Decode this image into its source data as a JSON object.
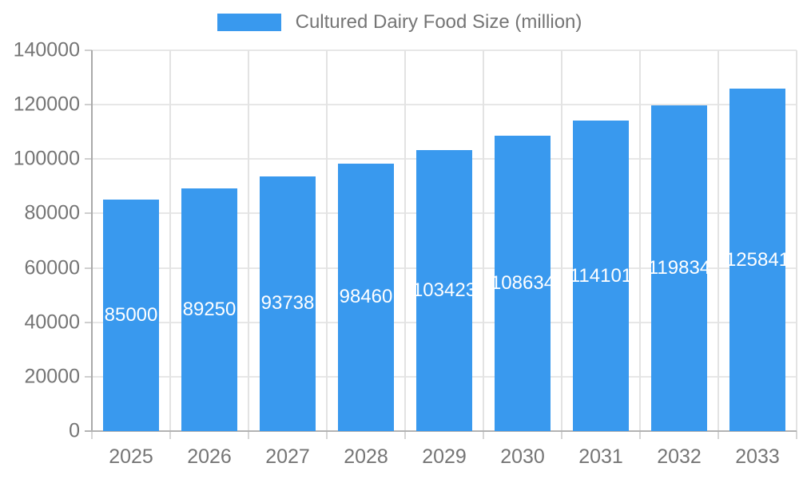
{
  "chart_data": {
    "type": "bar",
    "legend": "Cultured Dairy Food Size (million)",
    "legend_position": "top",
    "categories": [
      "2025",
      "2026",
      "2027",
      "2028",
      "2029",
      "2030",
      "2031",
      "2032",
      "2033"
    ],
    "values": [
      85000,
      89250,
      93738,
      98460,
      103423,
      108634,
      114101,
      119834,
      125841
    ],
    "ylim": [
      0,
      140000
    ],
    "yticks": [
      0,
      20000,
      40000,
      60000,
      80000,
      100000,
      120000,
      140000
    ],
    "grid": true,
    "bar_color": "#3999ee",
    "bar_value_label_color": "#ffffff",
    "axis_text_color": "#757575",
    "grid_color": "#e7e7e7",
    "axis_line_color": "#a9a9a9"
  }
}
